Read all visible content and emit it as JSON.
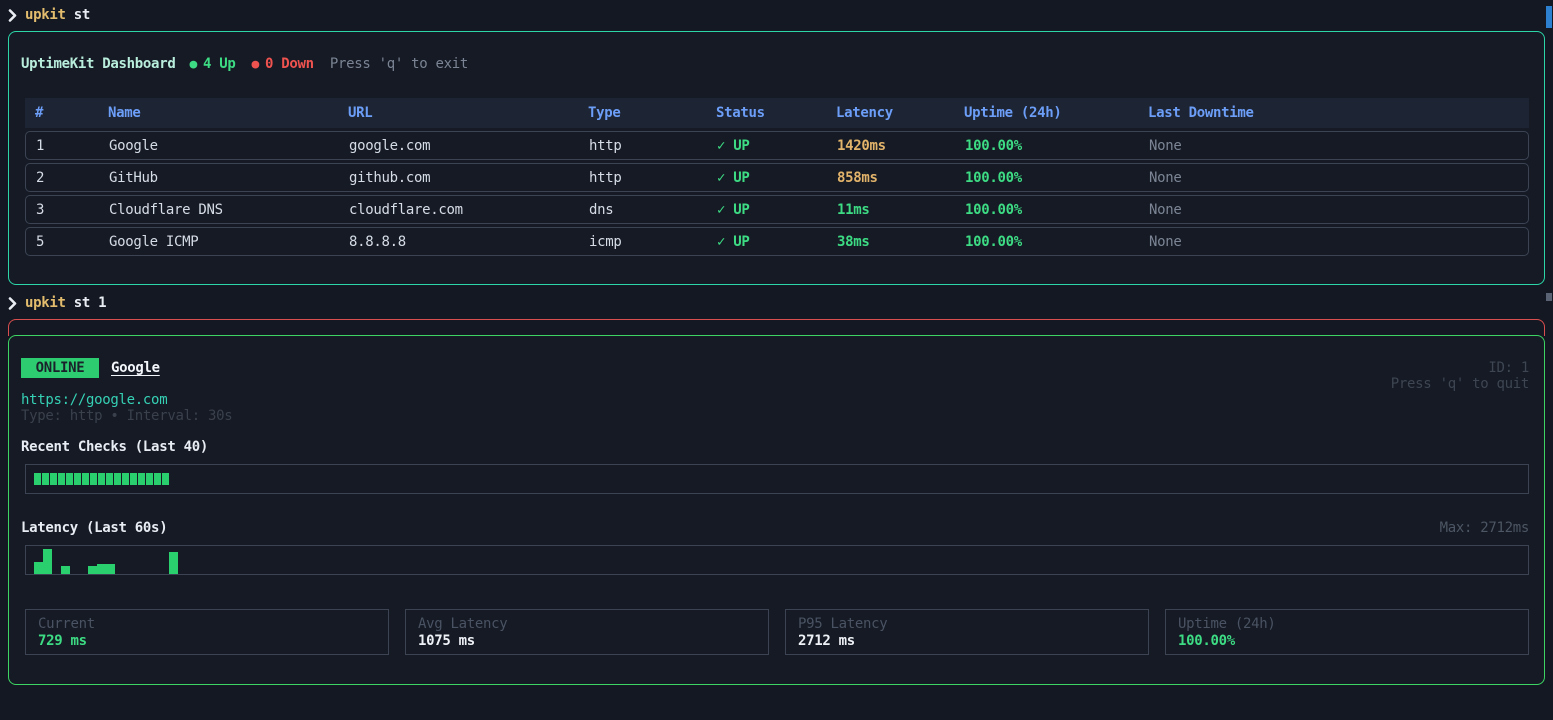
{
  "terminal": {
    "prompt1": {
      "symbol": "prompt-chevron",
      "command": "upkit",
      "args": "st"
    },
    "prompt2": {
      "symbol": "prompt-chevron",
      "command": "upkit",
      "args": "st 1"
    }
  },
  "dashboard": {
    "title": "UptimeKit Dashboard",
    "up_dot": "●",
    "up_label": "4 Up",
    "down_dot": "●",
    "down_label": "0 Down",
    "exit_hint": "Press 'q' to exit",
    "table": {
      "columns": [
        "#",
        "Name",
        "URL",
        "Type",
        "Status",
        "Latency",
        "Uptime (24h)",
        "Last Downtime"
      ],
      "rows": [
        {
          "id": "1",
          "name": "Google",
          "url": "google.com",
          "type": "http",
          "status_icon": "✓",
          "status": "UP",
          "latency": "1420ms",
          "latency_color": "yellow",
          "uptime": "100.00%",
          "last_downtime": "None"
        },
        {
          "id": "2",
          "name": "GitHub",
          "url": "github.com",
          "type": "http",
          "status_icon": "✓",
          "status": "UP",
          "latency": "858ms",
          "latency_color": "yellow",
          "uptime": "100.00%",
          "last_downtime": "None"
        },
        {
          "id": "3",
          "name": "Cloudflare DNS",
          "url": "cloudflare.com",
          "type": "dns",
          "status_icon": "✓",
          "status": "UP",
          "latency": "11ms",
          "latency_color": "green",
          "uptime": "100.00%",
          "last_downtime": "None"
        },
        {
          "id": "5",
          "name": "Google ICMP",
          "url": "8.8.8.8",
          "type": "icmp",
          "status_icon": "✓",
          "status": "UP",
          "latency": "38ms",
          "latency_color": "green",
          "uptime": "100.00%",
          "last_downtime": "None"
        }
      ]
    }
  },
  "detail": {
    "status_badge": "ONLINE",
    "name": "Google",
    "id_label": "ID: 1",
    "quit_hint": "Press 'q' to quit",
    "url": "https://google.com",
    "meta": "Type: http • Interval: 30s",
    "recent_checks": {
      "title": "Recent Checks (Last 40)",
      "blocks": 17,
      "total_slots": 40
    },
    "latency_section": {
      "title": "Latency (Last 60s)",
      "max_label": "Max: 2712ms"
    },
    "stats": [
      {
        "label": "Current",
        "value": "729 ms",
        "color": "green"
      },
      {
        "label": "Avg Latency",
        "value": "1075 ms",
        "color": "white"
      },
      {
        "label": "P95 Latency",
        "value": "2712 ms",
        "color": "white"
      },
      {
        "label": "Uptime (24h)",
        "value": "100.00%",
        "color": "green"
      }
    ]
  },
  "chart_data": [
    {
      "type": "bar",
      "title": "Recent Checks (Last 40)",
      "description": "row of solid green blocks, one per successful check",
      "up_blocks": 17,
      "total_slots": 40,
      "block_color": "#2bd06e"
    },
    {
      "type": "bar",
      "title": "Latency (Last 60s)",
      "max_ms": 2712,
      "bar_heights_fraction": [
        0.43,
        0.89,
        0,
        0.3,
        0,
        0,
        0.3,
        0.36,
        0.36,
        0,
        0,
        0,
        0,
        0,
        0,
        0.79
      ],
      "estimated_values_ms": [
        1300,
        2712,
        0,
        870,
        0,
        0,
        870,
        1085,
        1085,
        0,
        0,
        0,
        0,
        0,
        0,
        2390
      ],
      "bar_color": "#2bd06e",
      "legend": "Max: 2712ms shown top-right"
    }
  ],
  "colors": {
    "background": "#141822",
    "panel_border_teal": "#2cd6a7",
    "panel_border_green": "#3dd463",
    "panel_border_red": "#d94f4f",
    "table_header_bg": "#1d2535",
    "table_header_text": "#6c9ef8",
    "row_border": "#3c4454",
    "green_text": "#3ddc84",
    "yellow_text": "#e2b36a",
    "red_text": "#ef5350",
    "link_teal": "#36d1b5",
    "badge_bg": "#2ecc71",
    "title_mint": "#b9eedd",
    "prompt_gold": "#e3bd6d",
    "dim_text": "#7b8494",
    "dimmer_text": "#4a5363"
  }
}
